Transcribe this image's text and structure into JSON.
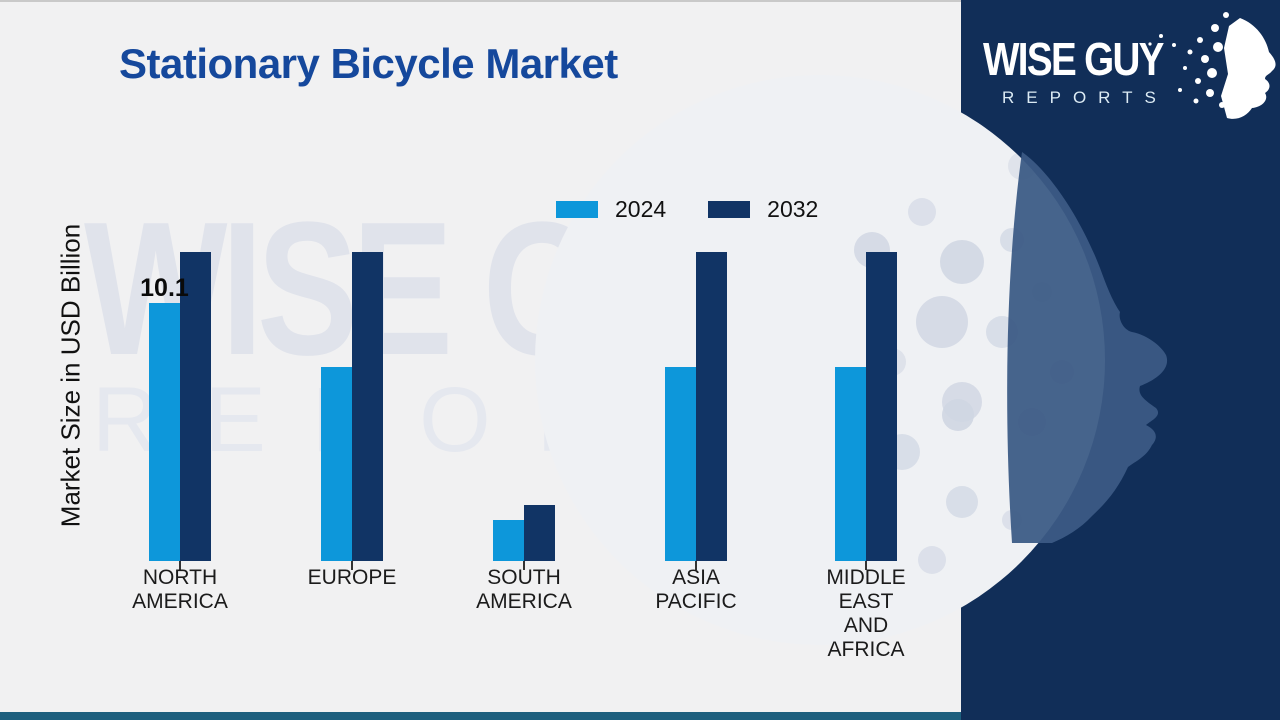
{
  "page": {
    "title": "Stationary Bicycle Market",
    "y_axis_label": "Market Size in USD Billion"
  },
  "brand": {
    "name": "WISE GUY",
    "sub": "REPORTS"
  },
  "colors": {
    "background": "#F1F1F2",
    "title_blue": "#15489C",
    "series_2024": "#0D97DA",
    "series_2032": "#113465",
    "brand_panel_navy": "#112E58",
    "bottom_bar_teal": "#1D5F7E",
    "watermark_gray": "#E0E3EB",
    "face_profile_blue": "#3C5A85"
  },
  "chart_data": {
    "type": "bar",
    "title": "Stationary Bicycle Market",
    "xlabel": "",
    "ylabel": "Market Size in USD Billion",
    "unit": "USD Billion",
    "grid": false,
    "legend_position": "top",
    "ylim": [
      0,
      13
    ],
    "categories": [
      {
        "id": "north-america",
        "name": "North America",
        "lines": [
          "NORTH",
          "AMERICA"
        ]
      },
      {
        "id": "europe",
        "name": "Europe",
        "lines": [
          "EUROPE"
        ]
      },
      {
        "id": "south-america",
        "name": "South America",
        "lines": [
          "SOUTH",
          "AMERICA"
        ]
      },
      {
        "id": "asia-pacific",
        "name": "Asia Pacific",
        "lines": [
          "ASIA",
          "PACIFIC"
        ]
      },
      {
        "id": "middle-east-and-africa",
        "name": "Middle East and Africa",
        "lines": [
          "MIDDLE",
          "EAST",
          "AND",
          "AFRICA"
        ]
      }
    ],
    "series": [
      {
        "name": "2024",
        "color": "#0D97DA",
        "values": [
          10.1,
          7.6,
          1.6,
          7.6,
          7.6
        ]
      },
      {
        "name": "2032",
        "color": "#113465",
        "values": [
          12.1,
          12.1,
          2.2,
          12.1,
          12.1
        ]
      }
    ],
    "bar_labels": [
      {
        "category_index": 0,
        "series_index": 0,
        "text": "10.1"
      }
    ]
  }
}
